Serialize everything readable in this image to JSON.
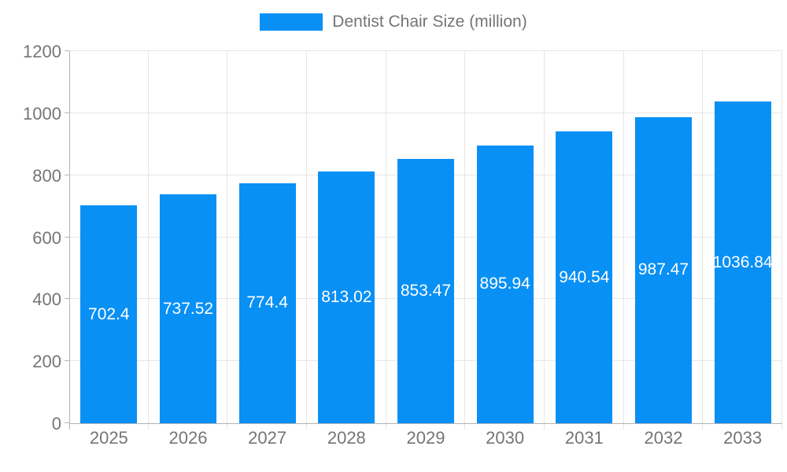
{
  "legend": {
    "label": "Dentist Chair Size (million)"
  },
  "colors": {
    "bar": "#0990f5",
    "grid": "#e6e6e6",
    "axis": "#b3b3b3",
    "text": "#757575",
    "bar_label": "#ffffff"
  },
  "chart_data": {
    "type": "bar",
    "title": "Dentist Chair Size (million)",
    "categories": [
      "2025",
      "2026",
      "2027",
      "2028",
      "2029",
      "2030",
      "2031",
      "2032",
      "2033"
    ],
    "values": [
      702.4,
      737.52,
      774.4,
      813.02,
      853.47,
      895.94,
      940.54,
      987.47,
      1036.84
    ],
    "value_labels": [
      "702.4",
      "737.52",
      "774.4",
      "813.02",
      "853.47",
      "895.94",
      "940.54",
      "987.47",
      "1036.84"
    ],
    "xlabel": "",
    "ylabel": "",
    "ylim": [
      0,
      1200
    ],
    "y_ticks": [
      0,
      200,
      400,
      600,
      800,
      1000,
      1200
    ],
    "grid": true,
    "legend_position": "top"
  }
}
